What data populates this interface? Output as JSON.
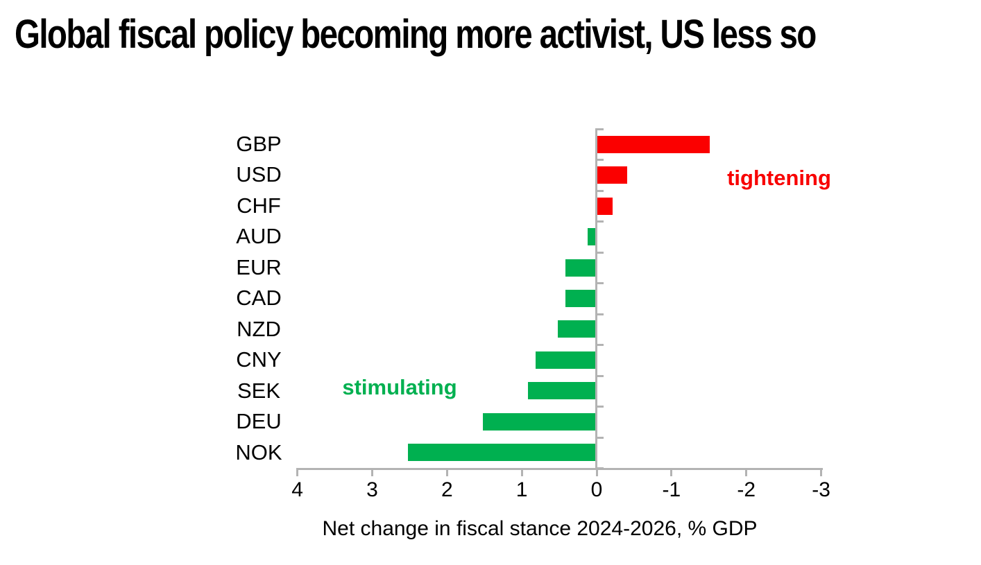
{
  "title": "Global fiscal policy becoming more activist, US less so",
  "chart_data": {
    "type": "bar",
    "orientation": "horizontal",
    "categories": [
      "GBP",
      "USD",
      "CHF",
      "AUD",
      "EUR",
      "CAD",
      "NZD",
      "CNY",
      "SEK",
      "DEU",
      "NOK"
    ],
    "values": [
      -1.5,
      -0.4,
      -0.2,
      0.1,
      0.4,
      0.4,
      0.5,
      0.8,
      0.9,
      1.5,
      2.5
    ],
    "xlabel": "Net change in fiscal stance 2024-2026, % GDP",
    "x_ticks": [
      4,
      3,
      2,
      1,
      0,
      -1,
      -2,
      -3
    ],
    "xlim": [
      4,
      -3
    ],
    "x_axis_reversed": true,
    "grid": false,
    "legend": "none",
    "annotations": [
      {
        "text": "tightening",
        "color": "#f80000"
      },
      {
        "text": "stimulating",
        "color": "#00b050"
      }
    ],
    "colors": {
      "negative_bar": "#fb0000",
      "positive_bar": "#00b050",
      "axis": "#b3b3b3",
      "text": "#000000"
    }
  }
}
